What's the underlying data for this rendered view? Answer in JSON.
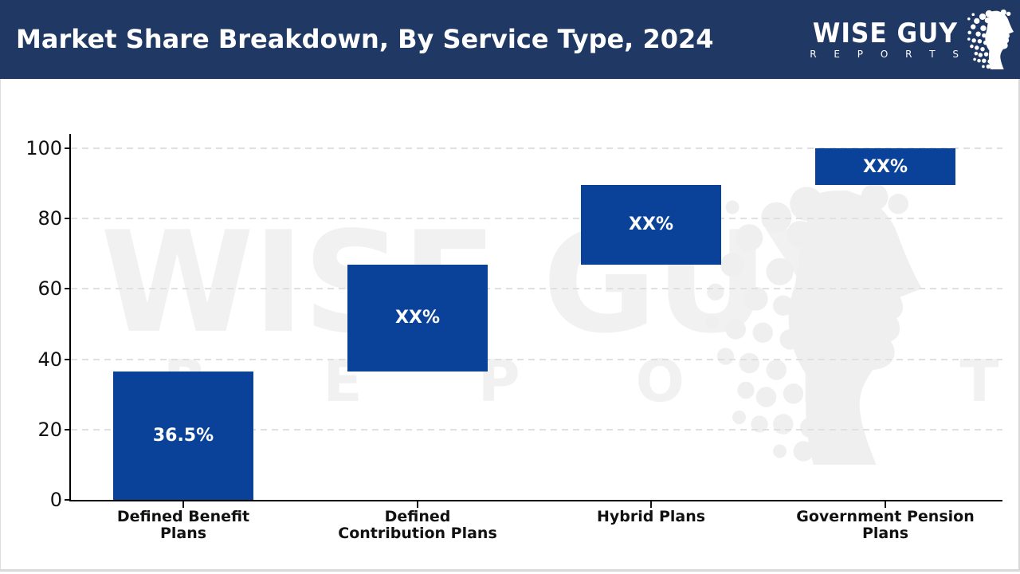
{
  "header": {
    "title": "Market Share Breakdown, By Service Type, 2024",
    "brand": {
      "line1": "WISE GUY",
      "line2": "R E P O R T S",
      "icon": "dotted-head-icon"
    }
  },
  "watermark": {
    "line1": "WISE GUY",
    "line2": "R E P O R T S"
  },
  "colors": {
    "header_bg": "#203864",
    "bar": "#0a429a",
    "bar_label": "#ffffff",
    "grid": "#e0e0e0",
    "axis": "#000000",
    "watermark": "#f1f1f1"
  },
  "chart_data": {
    "type": "bar",
    "subtype": "waterfall-stacked-market-share",
    "title": "Market Share Breakdown, By Service Type, 2024",
    "categories": [
      "Defined Benefit\nPlans",
      "Defined\nContribution Plans",
      "Hybrid Plans",
      "Government Pension\nPlans"
    ],
    "segments": [
      {
        "category": "Defined Benefit Plans",
        "start": 0,
        "end": 36.5,
        "label": "36.5%"
      },
      {
        "category": "Defined Contribution Plans",
        "start": 36.5,
        "end": 67,
        "label": "XX%"
      },
      {
        "category": "Hybrid Plans",
        "start": 67,
        "end": 89.5,
        "label": "XX%"
      },
      {
        "category": "Government Pension Plans",
        "start": 89.5,
        "end": 100,
        "label": "XX%"
      }
    ],
    "ylim": [
      0,
      100
    ],
    "yticks": [
      0,
      20,
      40,
      60,
      80,
      100
    ],
    "xlabel": "",
    "ylabel": "",
    "grid": "horizontal-dashed",
    "legend": "none"
  }
}
